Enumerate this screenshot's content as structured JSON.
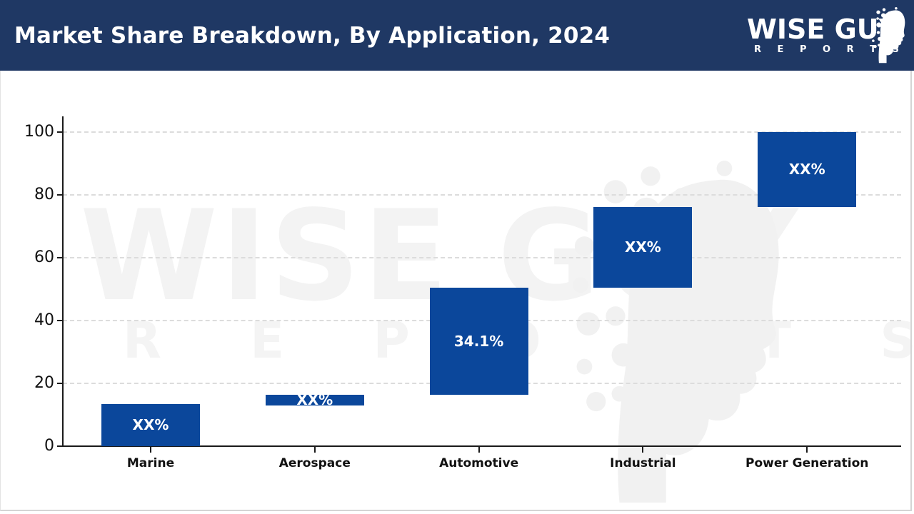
{
  "header": {
    "title": "Market Share Breakdown, By Application, 2024",
    "logo": {
      "name": "WISE GUY",
      "sub": "R E P O R T S"
    }
  },
  "watermark": {
    "name": "WISE GUY",
    "sub": "R E P O R T S"
  },
  "colors": {
    "header_bg": "#1F3864",
    "bar": "#0B479B",
    "gridline": "#dcdcdc",
    "watermark": "#f3f3f3"
  },
  "chart_data": {
    "type": "bar",
    "subtype": "waterfall-floating-bars",
    "title": "Market Share Breakdown, By Application, 2024",
    "xlabel": "",
    "ylabel": "",
    "categories": [
      "Marine",
      "Aerospace",
      "Automotive",
      "Industrial",
      "Power Generation"
    ],
    "segments": [
      {
        "category": "Marine",
        "start": 0,
        "end": 13.4,
        "label": "XX%"
      },
      {
        "category": "Aerospace",
        "start": 13.0,
        "end": 16.4,
        "label": "XX%"
      },
      {
        "category": "Automotive",
        "start": 16.4,
        "end": 50.5,
        "label": "34.1%"
      },
      {
        "category": "Industrial",
        "start": 50.5,
        "end": 76.1,
        "label": "XX%"
      },
      {
        "category": "Power Generation",
        "start": 76.1,
        "end": 100,
        "label": "XX%"
      }
    ],
    "ylim": [
      0,
      100
    ],
    "yticks": [
      0,
      20,
      40,
      60,
      80,
      100
    ],
    "grid": "horizontal-dashed",
    "legend": "none"
  }
}
